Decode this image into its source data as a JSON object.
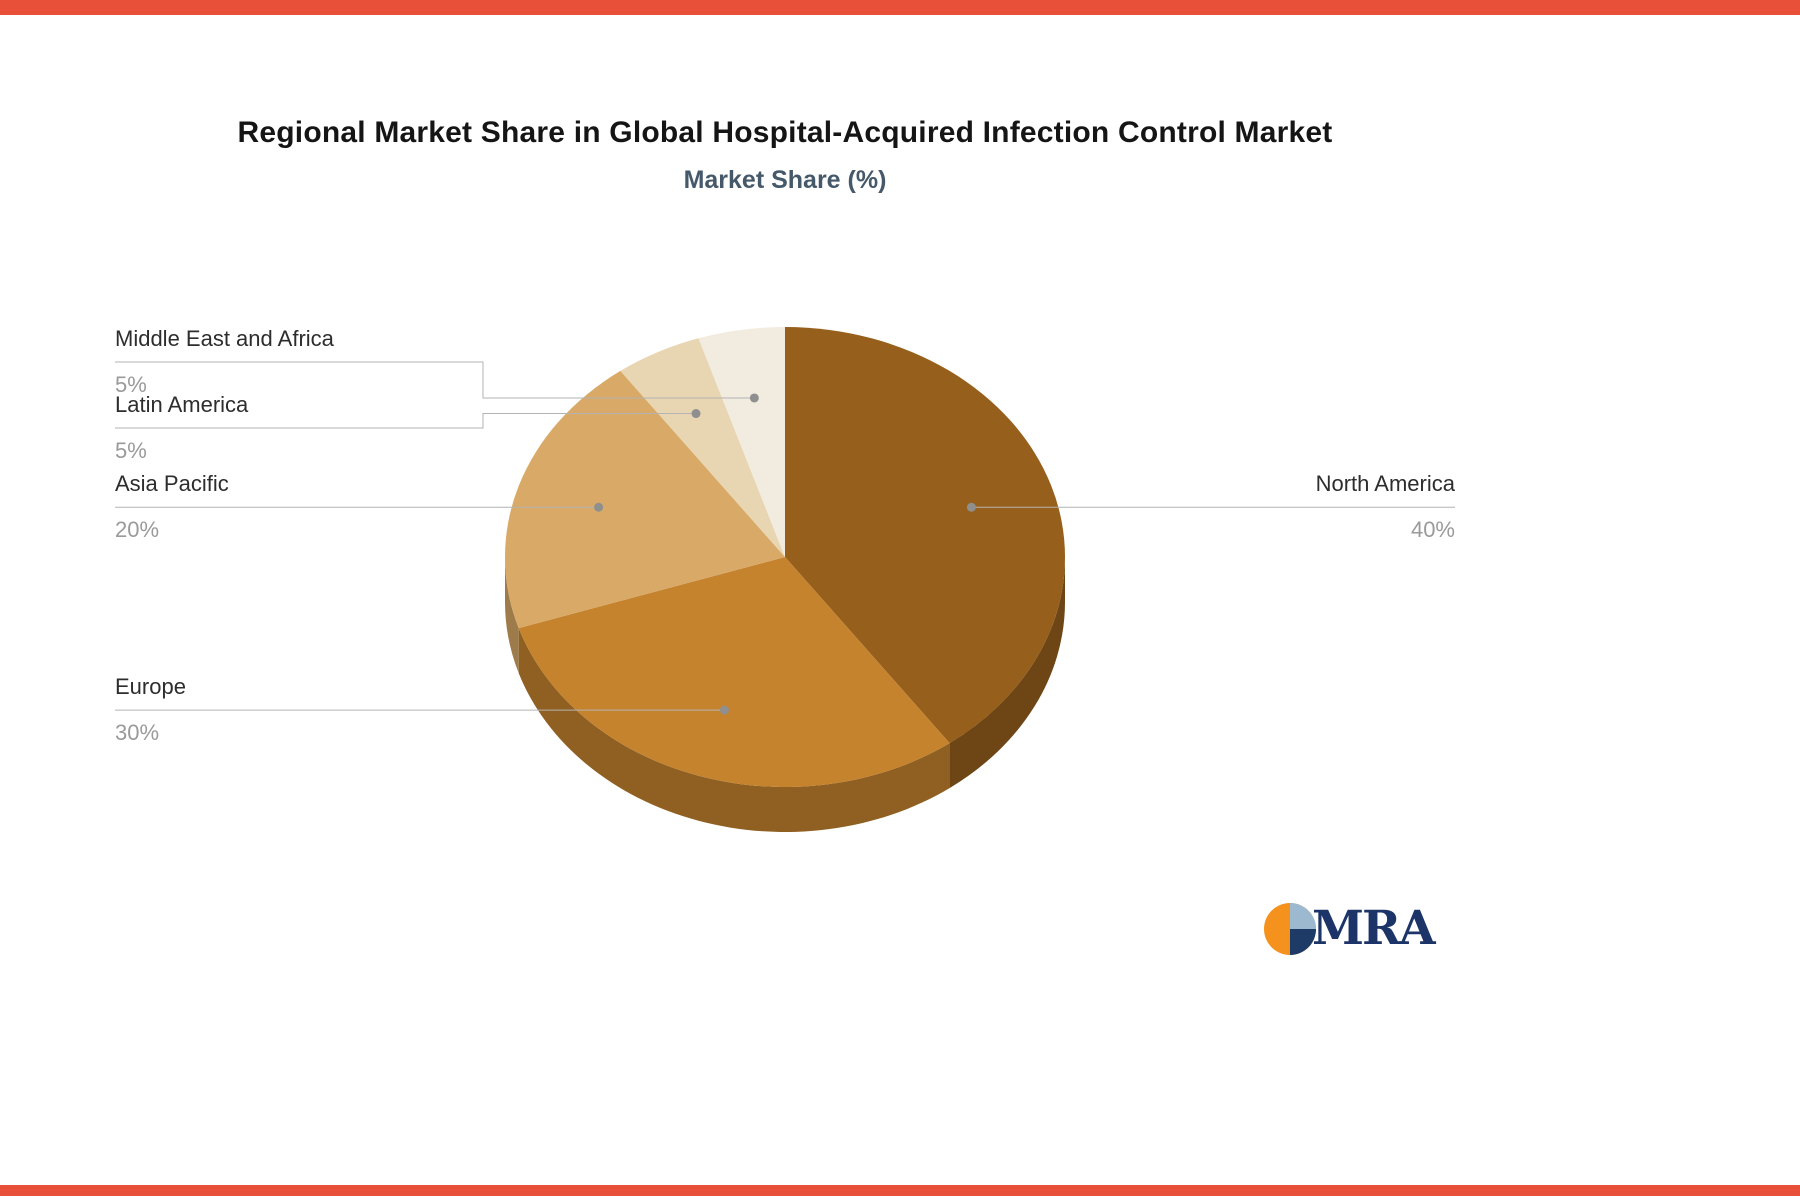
{
  "page": {
    "accent_color": "#e8503a",
    "logo_text": "MRA"
  },
  "chart_data": {
    "type": "pie",
    "style": "3d",
    "title": "Regional Market Share in Global Hospital-Acquired Infection Control Market",
    "subtitle": "Market Share (%)",
    "categories": [
      "North America",
      "Europe",
      "Asia Pacific",
      "Latin America",
      "Middle East and Africa"
    ],
    "values": [
      40,
      30,
      20,
      5,
      5
    ],
    "value_labels": [
      "40%",
      "30%",
      "20%",
      "5%",
      "5%"
    ],
    "colors": [
      "#965f1b",
      "#c5832e",
      "#d9a967",
      "#e8d6b2",
      "#f1ebe0"
    ],
    "start_angle_deg": 0,
    "direction": "clockwise",
    "legend": "none"
  }
}
